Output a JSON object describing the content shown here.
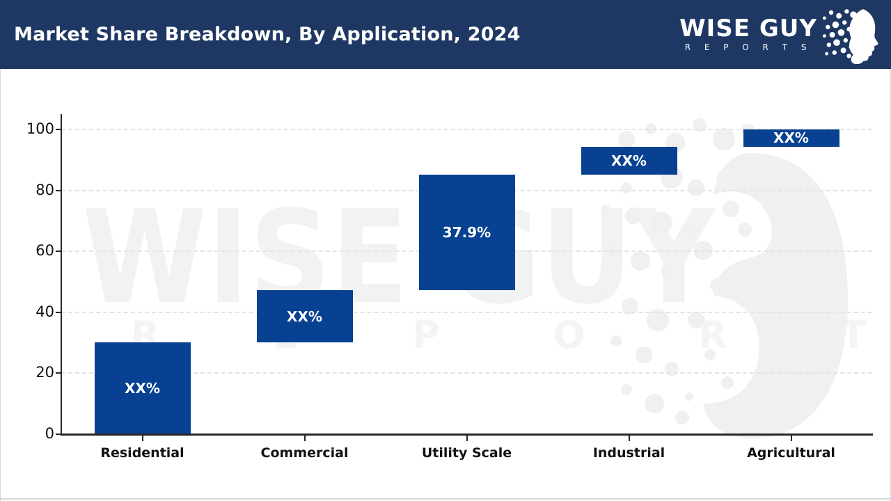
{
  "header": {
    "title": "Market Share Breakdown, By Application, 2024",
    "logo": {
      "line1": "WISE GUY",
      "line2": "R E P O R T S"
    }
  },
  "watermark": {
    "line1": "WISE GUY",
    "line2": "R E P O R T S"
  },
  "chart_data": {
    "type": "bar",
    "subtype": "floating-segment waterfall of market share",
    "title": "Market Share Breakdown, By Application, 2024",
    "categories": [
      "Residential",
      "Commercial",
      "Utility Scale",
      "Industrial",
      "Agricultural"
    ],
    "segments": [
      {
        "category": "Residential",
        "label": "XX%",
        "start": 0,
        "end": 30.1
      },
      {
        "category": "Commercial",
        "label": "XX%",
        "start": 30.1,
        "end": 47.2
      },
      {
        "category": "Utility Scale",
        "label": "37.9%",
        "start": 47.2,
        "end": 85.1
      },
      {
        "category": "Industrial",
        "label": "XX%",
        "start": 85.1,
        "end": 94.4
      },
      {
        "category": "Agricultural",
        "label": "XX%",
        "start": 94.4,
        "end": 100
      }
    ],
    "yticks": [
      0,
      20,
      40,
      60,
      80,
      100
    ],
    "ylim": [
      0,
      105
    ],
    "xlabel": "",
    "ylabel": "",
    "grid": "horizontal dashed",
    "legend": "none",
    "bar_color": "#084191",
    "bar_label_color": "#ffffff",
    "axis_color": "#262626",
    "gridline_color": "#e4e4e4",
    "header_color": "#1f3863"
  }
}
